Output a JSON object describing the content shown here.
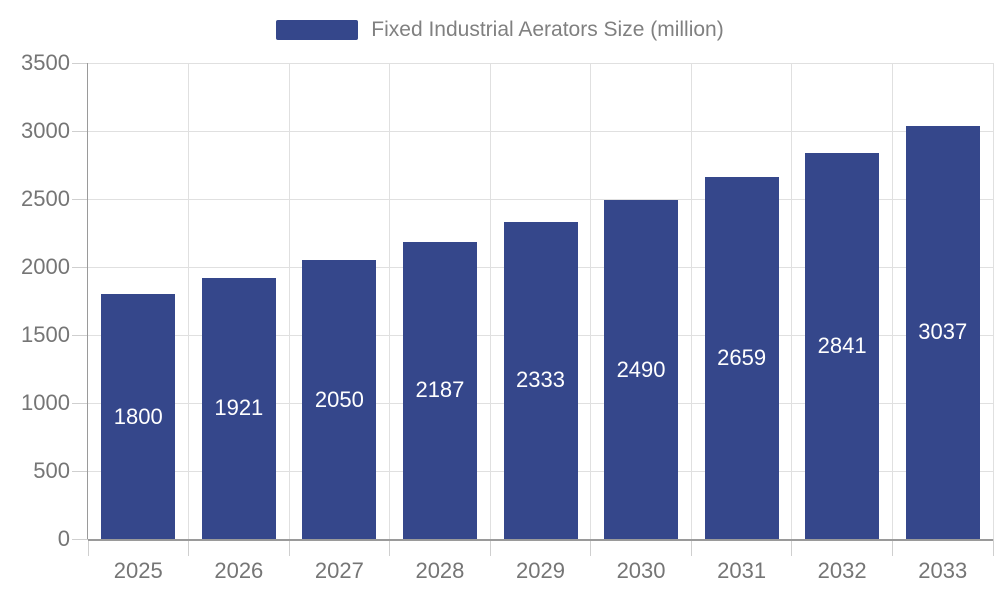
{
  "legend": {
    "label": "Fixed Industrial Aerators Size (million)"
  },
  "colors": {
    "bar": "#35478B",
    "grid": "#E0E0E0",
    "tick": "#CFCFCF",
    "axis": "#9A9A9A",
    "tick_text": "#757575",
    "legend_text": "#808080",
    "bar_label_text": "#FFFFFF",
    "background": "#FFFFFF"
  },
  "chart_data": {
    "type": "bar",
    "title": "Fixed Industrial Aerators Size (million)",
    "categories": [
      "2025",
      "2026",
      "2027",
      "2028",
      "2029",
      "2030",
      "2031",
      "2032",
      "2033"
    ],
    "series": [
      {
        "name": "Fixed Industrial Aerators Size (million)",
        "values": [
          1800,
          1921,
          2050,
          2187,
          2333,
          2490,
          2659,
          2841,
          3037
        ]
      }
    ],
    "xlabel": "",
    "ylabel": "",
    "ylim": [
      0,
      3500
    ],
    "yticks": [
      0,
      500,
      1000,
      1500,
      2000,
      2500,
      3000,
      3500
    ],
    "grid": true,
    "legend_position": "top",
    "value_labels": "inside-center"
  }
}
